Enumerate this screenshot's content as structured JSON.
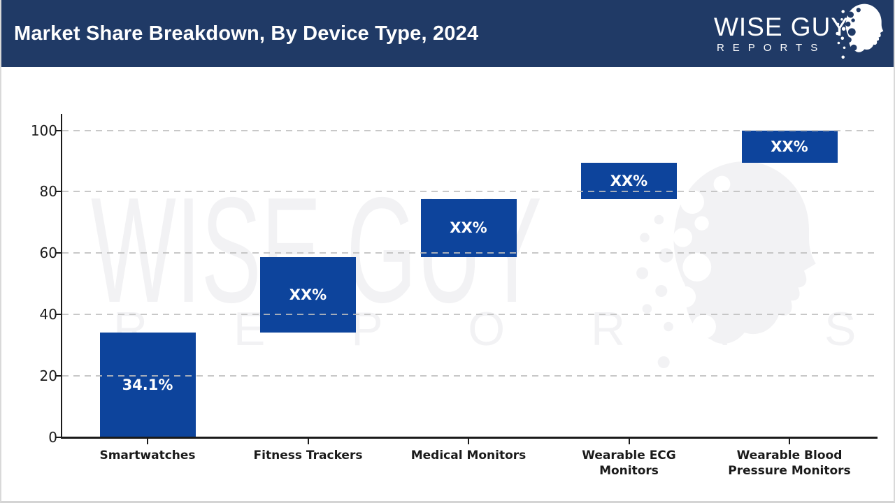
{
  "header": {
    "title": "Market Share Breakdown, By Device Type, 2024",
    "logo": {
      "line1": "WISE GUY",
      "line2": "REPORTS"
    }
  },
  "watermark": {
    "line1": "WISE GUY",
    "line2": "R E P O R T S"
  },
  "colors": {
    "header_bg": "#203a66",
    "bar": "#0d449c",
    "bar_label": "#ffffff",
    "grid": "#bebebe",
    "axis": "#1a1a1a",
    "watermark": "#f2f2f4",
    "title_text": "#ffffff"
  },
  "chart_data": {
    "type": "bar",
    "subtype": "waterfall",
    "title": "Market Share Breakdown, By Device Type, 2024",
    "xlabel": "",
    "ylabel": "",
    "ylim": [
      0,
      105.4
    ],
    "yticks": [
      0,
      20,
      40,
      60,
      80,
      100
    ],
    "grid": "horizontal-dashed",
    "legend": "none",
    "categories": [
      "Smartwatches",
      "Fitness Trackers",
      "Medical Monitors",
      "Wearable ECG Monitors",
      "Wearable Blood Pressure Monitors"
    ],
    "segments": [
      {
        "category": "Smartwatches",
        "start": 0,
        "end": 34.1,
        "label": "34.1%"
      },
      {
        "category": "Fitness Trackers",
        "start": 34.1,
        "end": 58.8,
        "label": "XX%"
      },
      {
        "category": "Medical Monitors",
        "start": 58.8,
        "end": 77.7,
        "label": "XX%"
      },
      {
        "category": "Wearable ECG Monitors",
        "start": 77.7,
        "end": 89.4,
        "label": "XX%"
      },
      {
        "category": "Wearable Blood Pressure Monitors",
        "start": 89.4,
        "end": 100,
        "label": "XX%"
      }
    ]
  }
}
